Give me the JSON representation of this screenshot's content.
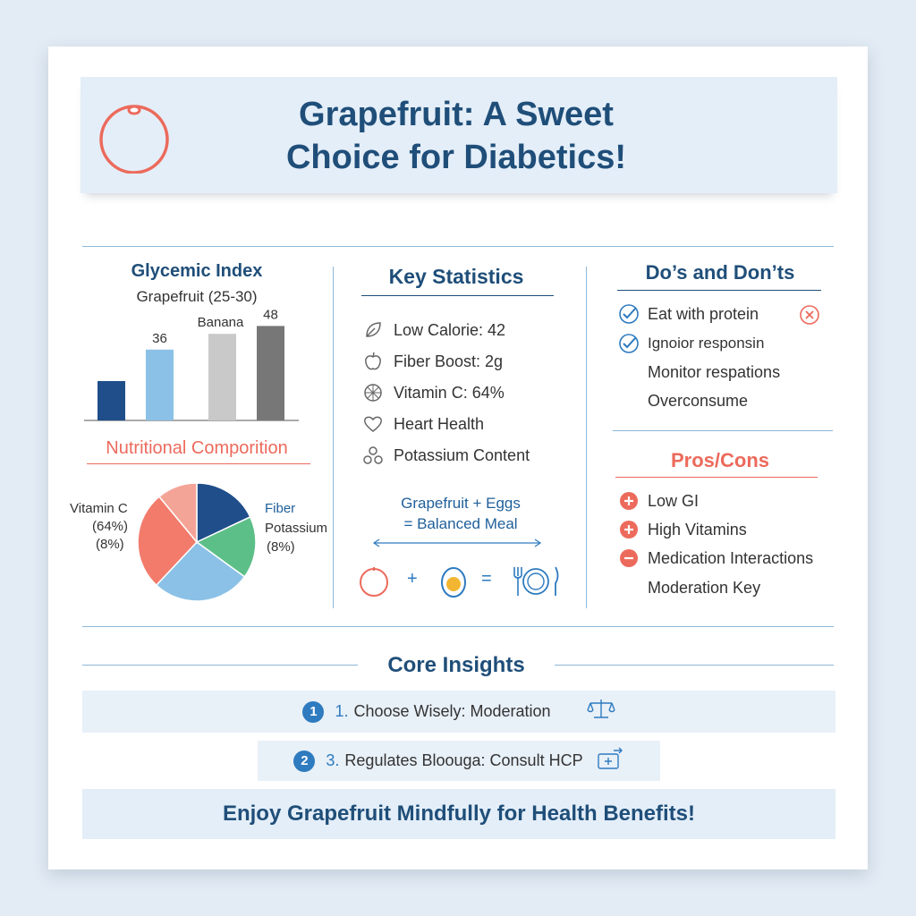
{
  "header": {
    "title_line1": "Grapefruit: A Sweet",
    "title_line2": "Choice for Diabetics!"
  },
  "glycemic": {
    "title": "Glycemic Index",
    "subtitle": "Grapefruit (25-30)",
    "bars": [
      {
        "label": "",
        "value": 20,
        "color": "#1f4e8a"
      },
      {
        "label": "36",
        "value": 36,
        "color": "#8bc1e6"
      },
      {
        "label": "Banana",
        "value": 44,
        "color": "#c9c9c9"
      },
      {
        "label": "48",
        "value": 48,
        "color": "#777777"
      }
    ]
  },
  "nutrition": {
    "title": "Nutritional Comporition",
    "label_vitamin": "Vitamin C",
    "label_vitamin_pct": "(64%)",
    "label_vitamin_pct2": "(8%)",
    "label_fiber": "Fiber",
    "label_potassium": "Potassium",
    "label_potassium_pct": "(8%)"
  },
  "chart_data": [
    {
      "type": "bar",
      "title": "Glycemic Index",
      "subtitle": "Grapefruit (25-30)",
      "categories": [
        "",
        "",
        "Banana",
        ""
      ],
      "values": [
        20,
        36,
        44,
        48
      ],
      "data_labels": [
        "",
        "36",
        "",
        "48"
      ]
    },
    {
      "type": "pie",
      "title": "Nutritional Comporition",
      "slices": [
        {
          "name": "",
          "value": 18,
          "color": "#1f4e8a"
        },
        {
          "name": "",
          "value": 17,
          "color": "#5dbf88"
        },
        {
          "name": "",
          "value": 27,
          "color": "#8bc1e6"
        },
        {
          "name": "",
          "value": 27,
          "color": "#f27b6b"
        },
        {
          "name": "",
          "value": 11,
          "color": "#f4a497"
        }
      ]
    }
  ],
  "stats": {
    "title": "Key Statistics",
    "items": [
      {
        "label": "Low Calorie: 42",
        "icon": "leaf-icon"
      },
      {
        "label": "Fiber Boost: 2g",
        "icon": "apple-icon"
      },
      {
        "label": "Vitamin C: 64%",
        "icon": "citrus-icon"
      },
      {
        "label": "Heart Health",
        "icon": "heart-icon"
      },
      {
        "label": "Potassium Content",
        "icon": "molecule-icon"
      }
    ],
    "combo_line1": "Grapefruit + Eggs",
    "combo_line2": "= Balanced Meal",
    "plus": "+",
    "equals": "="
  },
  "dos": {
    "title": "Do’s and Don’ts",
    "items": [
      "Eat with protein",
      "Ignoior responsin",
      "Monitor respations",
      "Overconsume"
    ]
  },
  "pros": {
    "title": "Pros/Cons",
    "items": [
      "Low GI",
      "High Vitamins",
      "Medication Interactions",
      "Moderation Key"
    ]
  },
  "insights": {
    "title": "Core Insights",
    "items": [
      {
        "badge": "1",
        "prefix": "1.",
        "text": "Choose Wisely: Moderation",
        "icon": "scale-icon"
      },
      {
        "badge": "2",
        "prefix": "3.",
        "text": "Regulates Bloouga: Consult HCP",
        "icon": "medical-kit-icon"
      }
    ]
  },
  "footer": {
    "text": "Enjoy Grapefruit Mindfully for Health Benefits!"
  },
  "colors": {
    "accent": "#1f4e79",
    "coral": "#ec6a5c",
    "line": "#8fb8d8"
  }
}
